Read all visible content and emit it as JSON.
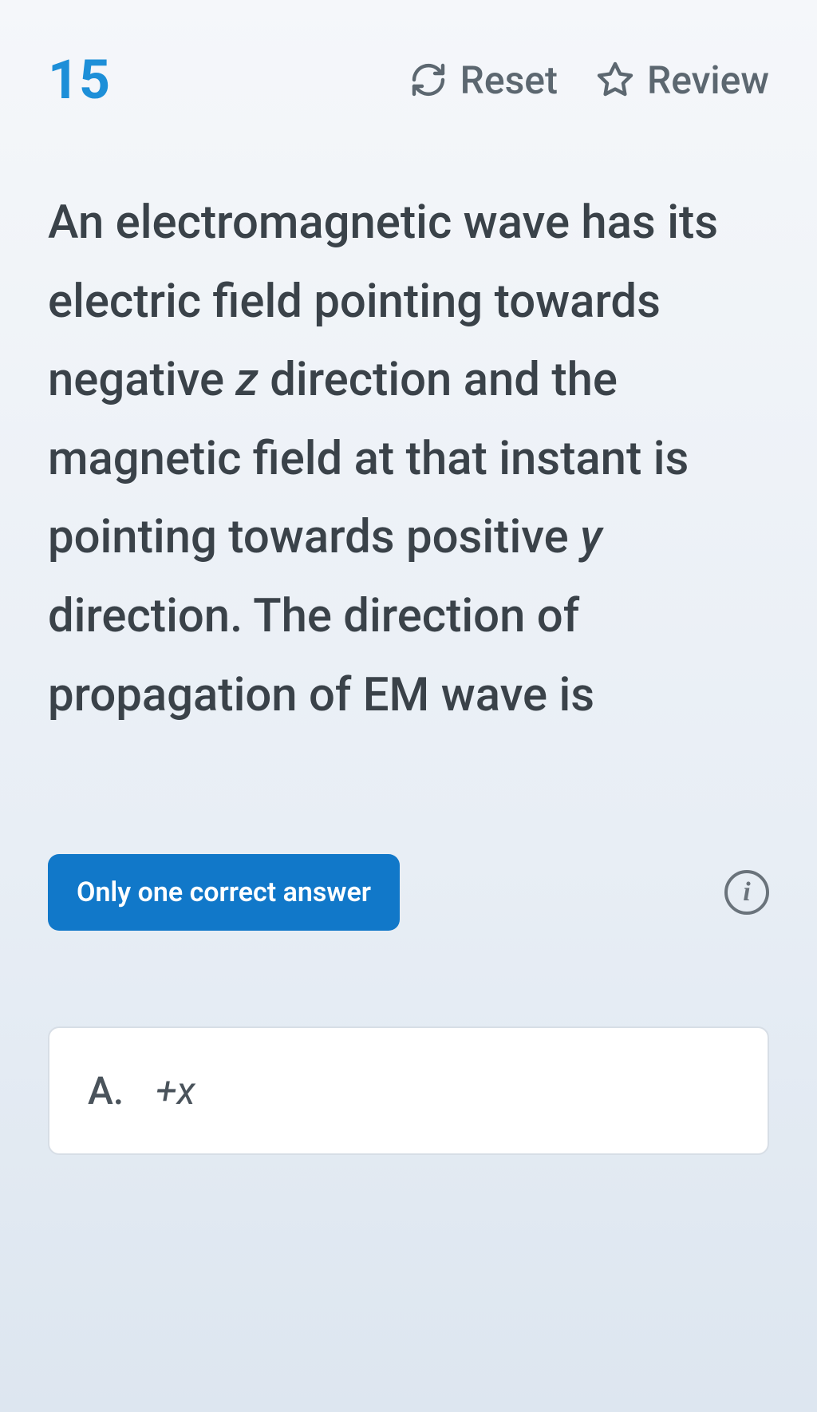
{
  "header": {
    "question_number": "15",
    "reset_label": "Reset",
    "review_label": "Review"
  },
  "question": {
    "segments": [
      {
        "text": "An electromagnetic wave has its electric field pointing towards negative ",
        "style": "normal"
      },
      {
        "text": "z",
        "style": "italic"
      },
      {
        "text": " direction and the magnetic field at that instant is pointing towards positive ",
        "style": "normal"
      },
      {
        "text": "y",
        "style": "italic"
      },
      {
        "text": " direction. The direction of propagation of EM wave is",
        "style": "normal"
      }
    ]
  },
  "badge": {
    "label": "Only one correct answer"
  },
  "info_glyph": "i",
  "options": [
    {
      "letter": "A.",
      "text": "+x"
    }
  ],
  "colors": {
    "accent": "#1d8fd8",
    "badge_bg": "#1178c9",
    "badge_text": "#ffffff",
    "body_text": "#3a4249",
    "muted": "#5c6770",
    "card_bg": "#ffffff",
    "card_border": "#d7dee6"
  }
}
